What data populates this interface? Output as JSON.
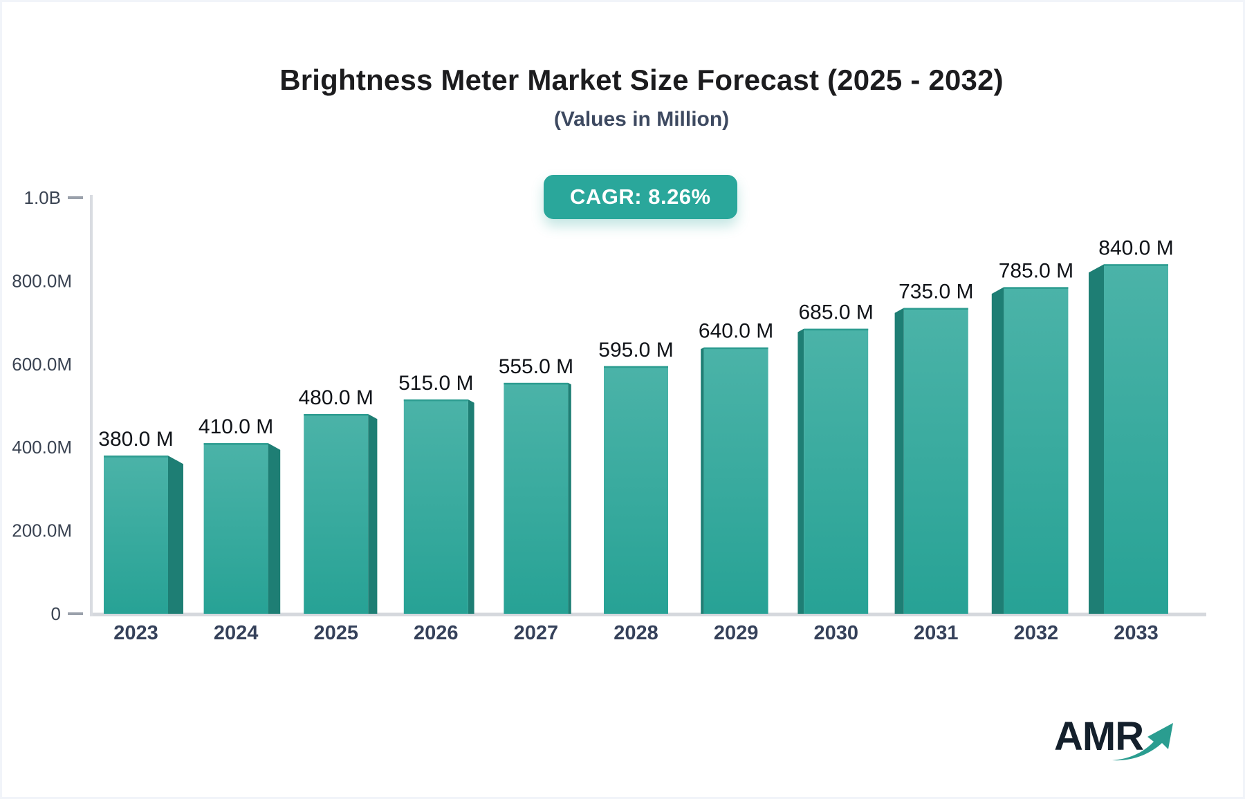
{
  "header": {
    "title": "Brightness Meter Market Size Forecast (2025 - 2032)",
    "subtitle": "(Values in Million)"
  },
  "badge": {
    "label": "CAGR: 8.26%"
  },
  "chart_data": {
    "type": "bar",
    "title": "Brightness Meter Market Size Forecast (2025 - 2032)",
    "subtitle": "(Values in Million)",
    "unit": "M",
    "categories": [
      "2023",
      "2024",
      "2025",
      "2026",
      "2027",
      "2028",
      "2029",
      "2030",
      "2031",
      "2032",
      "2033"
    ],
    "values": [
      380,
      410,
      480,
      515,
      555,
      595,
      640,
      685,
      735,
      785,
      840
    ],
    "value_labels": [
      "380.0 M",
      "410.0 M",
      "480.0 M",
      "515.0 M",
      "555.0 M",
      "595.0 M",
      "640.0 M",
      "685.0 M",
      "735.0 M",
      "785.0 M",
      "840.0 M"
    ],
    "ylim": [
      0,
      1000
    ],
    "y_ticks": [
      {
        "value": 0,
        "label": "0",
        "dash": true
      },
      {
        "value": 200,
        "label": "200.0M",
        "dash": false
      },
      {
        "value": 400,
        "label": "400.0M",
        "dash": false
      },
      {
        "value": 600,
        "label": "600.0M",
        "dash": false
      },
      {
        "value": 800,
        "label": "800.0M",
        "dash": false
      },
      {
        "value": 1000,
        "label": "1.0B",
        "dash": true
      }
    ],
    "grid": false,
    "legend": false,
    "style": "3d-perspective-bars",
    "colors": {
      "bar_top": "#4bb3a8",
      "bar_bottom": "#27a295",
      "bar_side": "#1e7e74",
      "bar_edge": "#2d9c90",
      "axis_line": "#d9dce1",
      "baseline": "#d5d8dd",
      "tick_dash": "#9aa1ab",
      "badge_bg": "#2aa79b",
      "logo_arrow": "#2a9d90"
    }
  },
  "logo": {
    "text": "AMR"
  }
}
